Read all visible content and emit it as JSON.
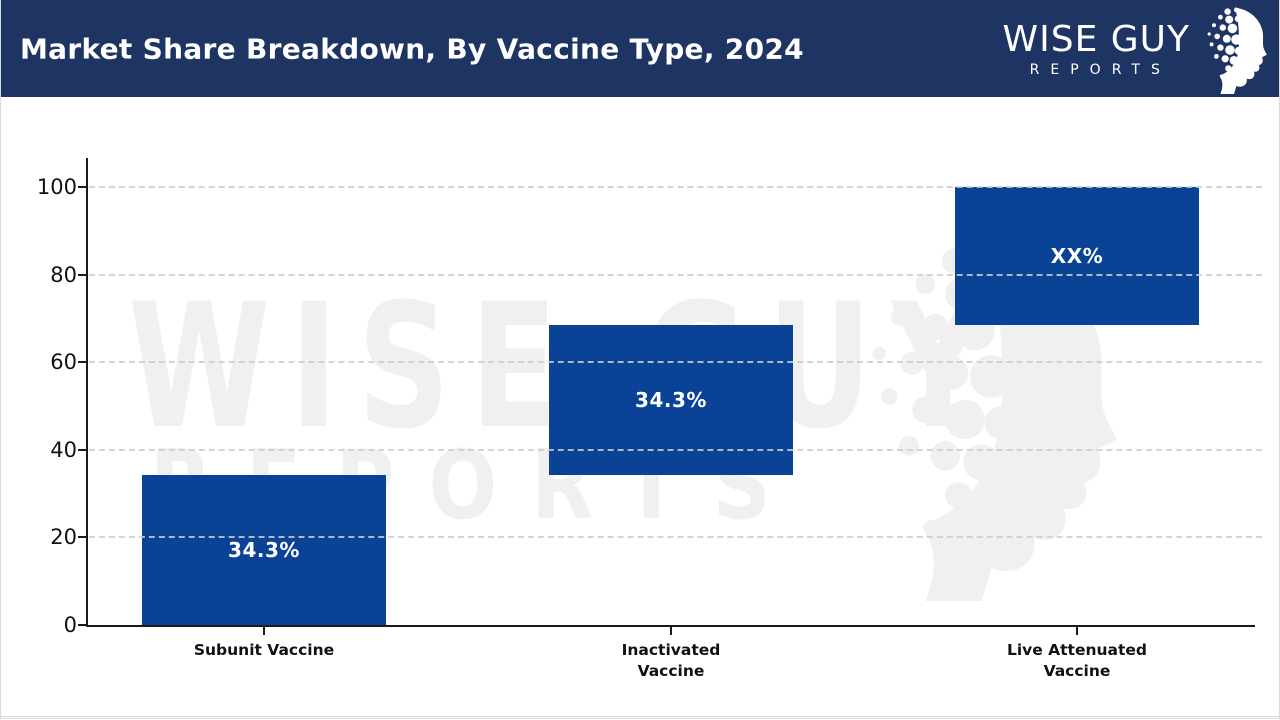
{
  "header": {
    "title": "Market Share Breakdown, By Vaccine Type, 2024",
    "logo": {
      "primary": "WISE GUY",
      "secondary": "REPORTS"
    }
  },
  "watermark": {
    "primary": "WISE GUY",
    "secondary": "REPORTS"
  },
  "colors": {
    "header_bg": "#1e3564",
    "bar_fill": "#0a4296",
    "bar_label": "#ffffff",
    "axis": "#1a1a1a",
    "gridline": "#cdcdcd",
    "watermark": "#f0f0f0"
  },
  "chart_data": {
    "type": "bar",
    "subtype": "floating-segment-bars",
    "title": "Market Share Breakdown, By Vaccine Type, 2024",
    "categories": [
      "Subunit Vaccine",
      "Inactivated\nVaccine",
      "Live Attenuated\nVaccine"
    ],
    "series": [
      {
        "name": "Market share (%)",
        "segments": [
          {
            "category": "Subunit Vaccine",
            "start": 0,
            "end": 34.3,
            "label": "34.3%"
          },
          {
            "category": "Inactivated Vaccine",
            "start": 34.3,
            "end": 68.6,
            "label": "34.3%"
          },
          {
            "category": "Live Attenuated Vaccine",
            "start": 68.6,
            "end": 100,
            "label": "XX%"
          }
        ]
      }
    ],
    "xlabel": "",
    "ylabel": "",
    "ylim": [
      0,
      100
    ],
    "yticks": [
      0,
      20,
      40,
      60,
      80,
      100
    ],
    "grid": "horizontal-dashed",
    "legend": "none"
  }
}
